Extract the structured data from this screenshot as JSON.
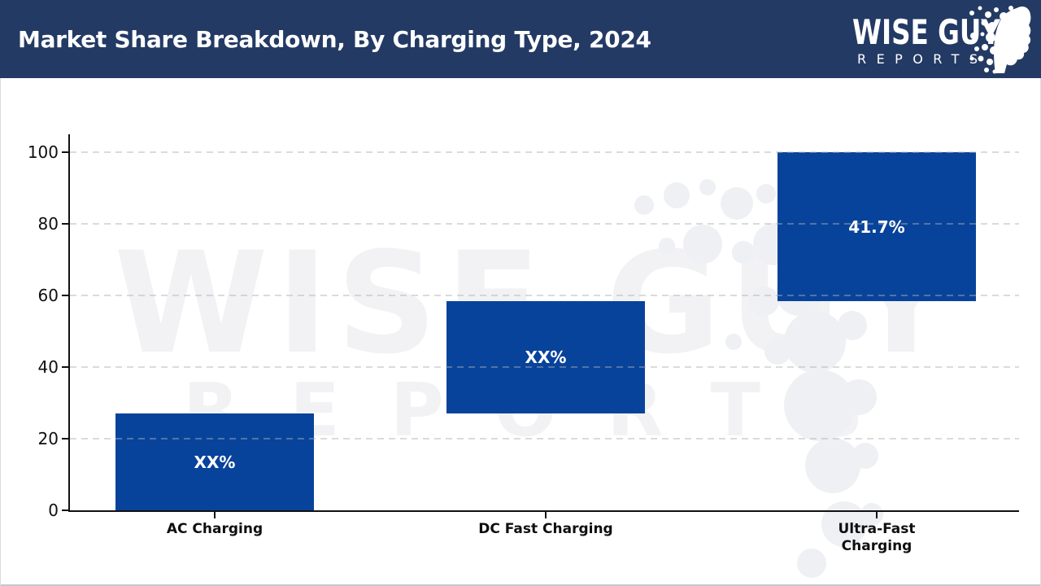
{
  "header": {
    "title": "Market Share Breakdown, By Charging Type, 2024",
    "bg_color": "#233A64",
    "logo": {
      "line1": "WISE GUY",
      "line2": "REPORTS"
    }
  },
  "watermark": {
    "line1": "WISE GUY",
    "line2": "REPORTS"
  },
  "chart_data": {
    "type": "bar",
    "subtype": "waterfall",
    "title": "Market Share Breakdown, By Charging Type, 2024",
    "categories": [
      "AC Charging",
      "DC Fast Charging",
      "Ultra-Fast\nCharging"
    ],
    "series": [
      {
        "name": "Market Share (%)",
        "segments": [
          {
            "category": "AC Charging",
            "start": 0,
            "end": 27,
            "label": "XX%"
          },
          {
            "category": "DC Fast Charging",
            "start": 27,
            "end": 58.3,
            "label": "XX%"
          },
          {
            "category": "Ultra-Fast Charging",
            "start": 58.3,
            "end": 100,
            "label": "41.7%"
          }
        ]
      }
    ],
    "yticks": [
      0,
      20,
      40,
      60,
      80,
      100
    ],
    "ylim": [
      0,
      105
    ],
    "xlabel": "",
    "ylabel": "",
    "bar_color": "#08439B",
    "bar_label_color": "#ffffff",
    "grid": "horizontal-dashed",
    "legend": "none"
  }
}
